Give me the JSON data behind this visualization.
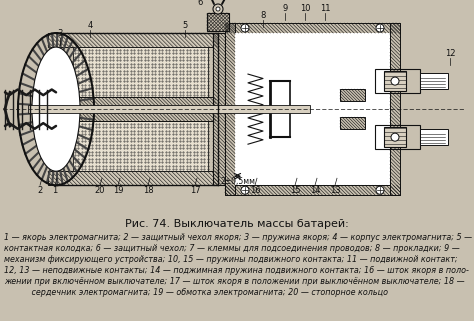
{
  "figure_title": "Рис. 74. Выключатель массы батарей:",
  "caption_lines": [
    "1 — якорь электромагнита; 2 — защитный чехол якоря; 3 — пружина якоря; 4 — корпус электромагнита; 5 —",
    "контактная колодка; 6 — защитный чехол; 7 — клеммы для подсоединения проводов; 8 — прокладки; 9 —",
    "механизм фиксирующего устройства; 10, 15 — пружины подвижного контакта; 11 — подвижной контакт;",
    "12, 13 — неподвижные контакты; 14 — поджимная пружина подвижного контакта; 16 — шток якоря в поло-",
    "жении при включённом выключателе; 17 — шток якоря в положении при выключённом выключателе; 18 —",
    "           сердечник электромагнита; 19 — обмотка электромагнита; 20 — стопорное кольцо"
  ],
  "bg_color": "#c8c0b0",
  "draw_bg": "#ffffff",
  "fig_width": 4.74,
  "fig_height": 3.21,
  "dpi": 100
}
